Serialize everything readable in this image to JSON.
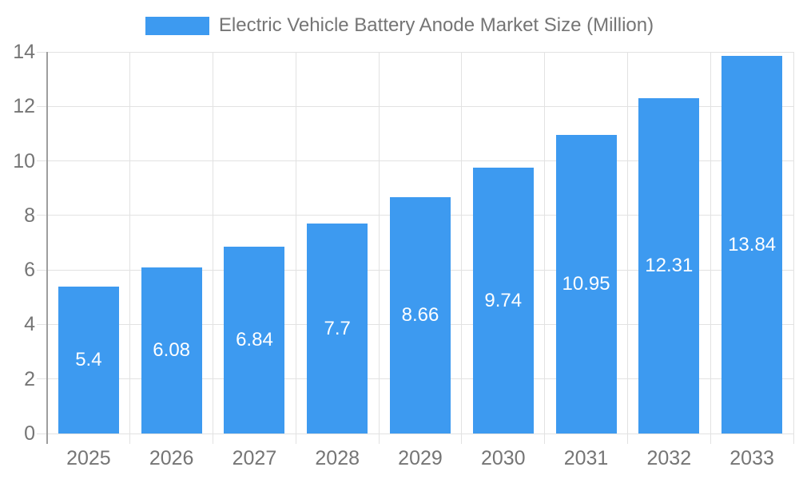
{
  "legend": {
    "label": "Electric Vehicle Battery Anode Market Size (Million)"
  },
  "colors": {
    "bar": "#3D9AF0",
    "grid": "#E2E2E2",
    "axis_line": "#9E9E9E",
    "axis_text": "#757575",
    "value_label_text": "#FFFFFF",
    "background": "#FFFFFF"
  },
  "chart_data": {
    "type": "bar",
    "title": "Electric Vehicle Battery Anode Market Size (Million)",
    "categories": [
      "2025",
      "2026",
      "2027",
      "2028",
      "2029",
      "2030",
      "2031",
      "2032",
      "2033"
    ],
    "values": [
      5.4,
      6.08,
      6.84,
      7.7,
      8.66,
      9.74,
      10.95,
      12.31,
      13.84
    ],
    "value_labels": [
      "5.4",
      "6.08",
      "6.84",
      "7.7",
      "8.66",
      "9.74",
      "10.95",
      "12.31",
      "13.84"
    ],
    "xlabel": "",
    "ylabel": "",
    "ylim": [
      0,
      14
    ],
    "yticks": [
      0,
      2,
      4,
      6,
      8,
      10,
      12,
      14
    ],
    "grid": true,
    "legend_position": "top-center",
    "value_label_position": "inside-center"
  }
}
